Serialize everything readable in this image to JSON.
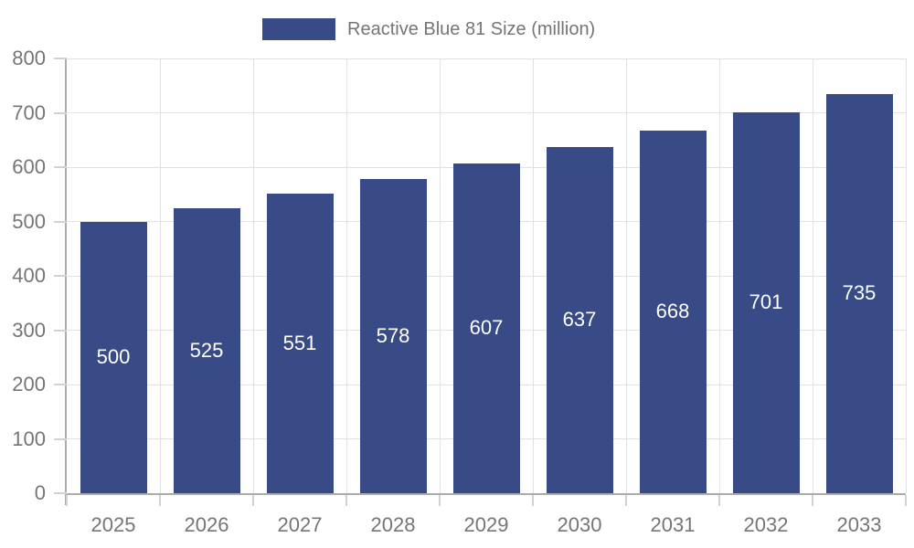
{
  "legend": {
    "label": "Reactive Blue 81 Size (million)"
  },
  "chart_data": {
    "type": "bar",
    "title": "",
    "xlabel": "",
    "ylabel": "",
    "categories": [
      "2025",
      "2026",
      "2027",
      "2028",
      "2029",
      "2030",
      "2031",
      "2032",
      "2033"
    ],
    "series": [
      {
        "name": "Reactive Blue 81 Size (million)",
        "values": [
          500,
          525,
          551,
          578,
          607,
          637,
          668,
          701,
          735
        ]
      }
    ],
    "ylim": [
      0,
      800
    ],
    "ytick_step": 100,
    "ytick_labels": [
      "0",
      "100",
      "200",
      "300",
      "400",
      "500",
      "600",
      "700",
      "800"
    ],
    "grid": true,
    "legend_position": "top-center",
    "value_labels": "white-centered-in-bar",
    "colors": {
      "bar": "#384B87",
      "value_label": "#FFFFFF",
      "tick_label": "#757575",
      "legend_text": "#757575",
      "axis_line": "#ACACAC",
      "gridline": "#E2E2E4",
      "tick_mark": "#D2D2D2",
      "background": "#FFFFFF"
    }
  }
}
